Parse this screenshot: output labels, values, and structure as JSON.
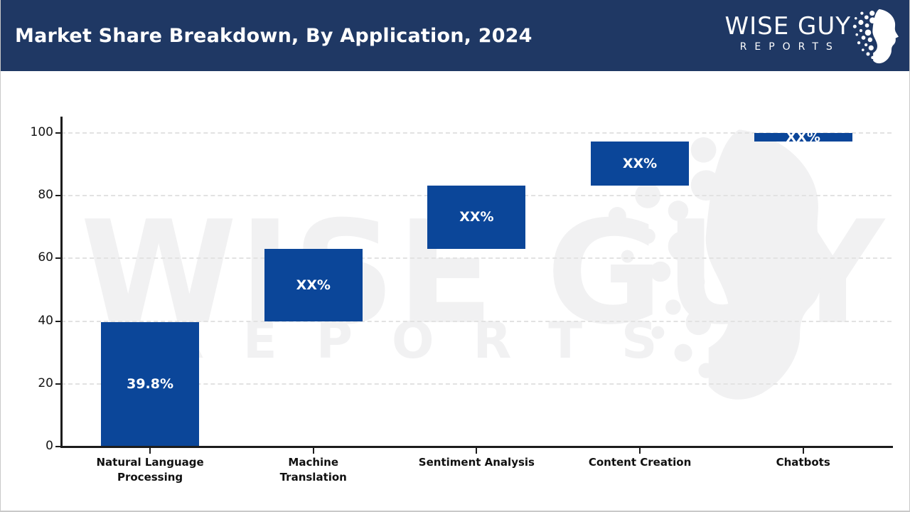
{
  "header": {
    "title": "Market Share Breakdown, By Application, 2024",
    "brand": {
      "name_top": "WISE GUY",
      "name_bottom": "REPORTS"
    }
  },
  "watermark": {
    "line1": "WISE GUY",
    "line2": "REPORTS"
  },
  "colors": {
    "header_bg": "#1f3864",
    "bar_fill": "#0b4699",
    "bar_label": "#ffffff",
    "gridline": "#e2e2e2",
    "axis": "#1c1c1c",
    "tick_label": "#141414",
    "watermark": "#f1f1f2",
    "page_border": "#c9c9c9"
  },
  "chart_data": {
    "type": "bar",
    "subtype": "waterfall",
    "title": "Market Share Breakdown, By Application, 2024",
    "categories": [
      "Natural Language Processing",
      "Machine Translation",
      "Sentiment Analysis",
      "Content Creation",
      "Chatbots"
    ],
    "category_lines": [
      [
        "Natural Language",
        "Processing"
      ],
      [
        "Machine",
        "Translation"
      ],
      [
        "Sentiment Analysis"
      ],
      [
        "Content Creation"
      ],
      [
        "Chatbots"
      ]
    ],
    "segments": [
      {
        "category": "Natural Language Processing",
        "start": 0,
        "end": 39.8,
        "label": "39.8%"
      },
      {
        "category": "Machine Translation",
        "start": 39.8,
        "end": 63.0,
        "label": "XX%"
      },
      {
        "category": "Sentiment Analysis",
        "start": 63.0,
        "end": 83.3,
        "label": "XX%"
      },
      {
        "category": "Content Creation",
        "start": 83.3,
        "end": 97.3,
        "label": "XX%"
      },
      {
        "category": "Chatbots",
        "start": 97.3,
        "end": 100.0,
        "label": "XX%"
      }
    ],
    "xlabel": "",
    "ylabel": "",
    "yticks": [
      0,
      20,
      40,
      60,
      80,
      100
    ],
    "ylim": [
      0,
      105
    ],
    "grid": "horizontal-dashed",
    "legend": "none"
  }
}
